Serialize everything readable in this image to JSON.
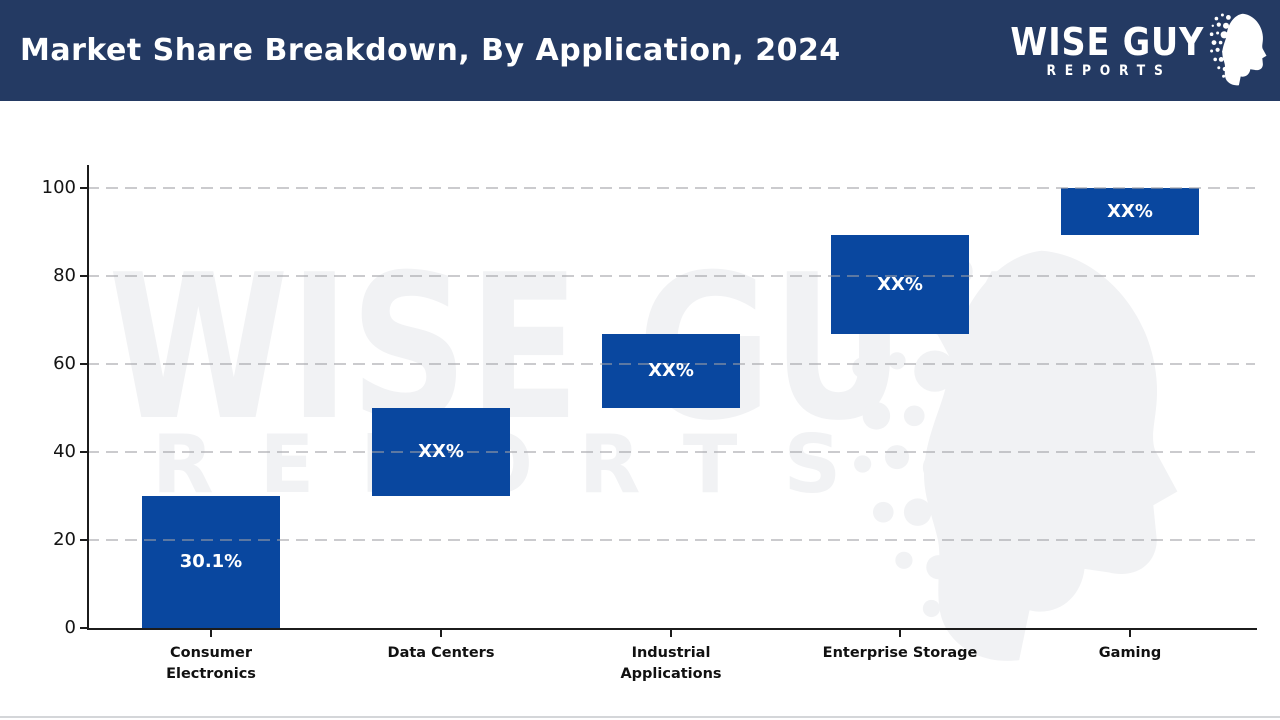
{
  "header": {
    "title": "Market Share Breakdown, By Application, 2024",
    "logo_line1": "WISE GUY",
    "logo_line2": "REPORTS",
    "bg_color": "#243A63",
    "text_color": "#FFFFFF"
  },
  "watermark": {
    "line1": "WISE GUY",
    "line2": "REPORTS",
    "color": "#F1F2F4"
  },
  "chart_data": {
    "type": "bar",
    "subtype": "waterfall",
    "title": "Market Share Breakdown, By Application, 2024",
    "categories": [
      "Consumer Electronics",
      "Data Centers",
      "Industrial Applications",
      "Enterprise Storage",
      "Gaming"
    ],
    "category_display": [
      "Consumer\nElectronics",
      "Data Centers",
      "Industrial\nApplications",
      "Enterprise Storage",
      "Gaming"
    ],
    "bars": [
      {
        "category": "Consumer Electronics",
        "start": 0,
        "end": 30.1,
        "label": "30.1%"
      },
      {
        "category": "Data Centers",
        "start": 30.1,
        "end": 50.1,
        "label": "XX%"
      },
      {
        "category": "Industrial Applications",
        "start": 50.1,
        "end": 66.8,
        "label": "XX%"
      },
      {
        "category": "Enterprise Storage",
        "start": 66.8,
        "end": 89.3,
        "label": "XX%"
      },
      {
        "category": "Gaming",
        "start": 89.3,
        "end": 100,
        "label": "XX%"
      }
    ],
    "xlabel": "",
    "ylabel": "",
    "ylim": [
      0,
      105
    ],
    "yticks": [
      0,
      20,
      40,
      60,
      80,
      100
    ],
    "grid": "horizontal-dashed",
    "legend": "none",
    "bar_color": "#09479F",
    "bar_label_color": "#FFFFFF"
  }
}
